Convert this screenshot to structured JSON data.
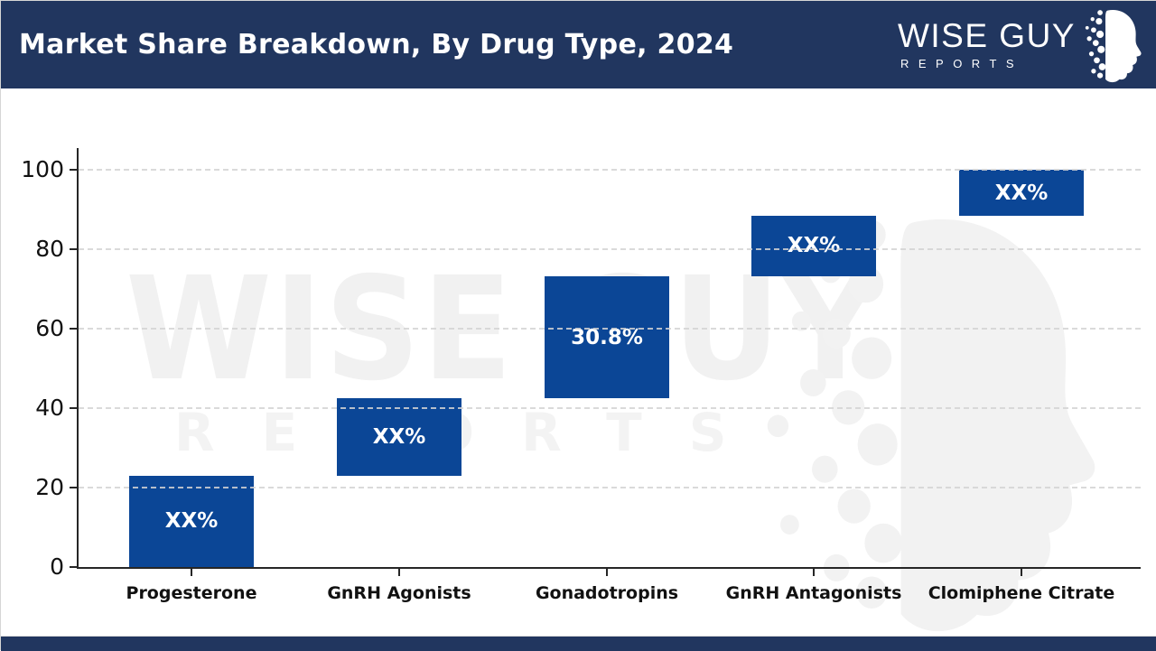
{
  "header": {
    "title": "Market Share Breakdown, By Drug Type, 2024",
    "logo": {
      "line1": "WISE GUY",
      "line2": "REPORTS"
    }
  },
  "watermark": {
    "line1": "WISE GUY",
    "line2": "REPORTS"
  },
  "colors": {
    "header_bg": "#21365f",
    "footer_bg": "#21365f",
    "bar": "#0b4696",
    "bar_label_text": "#ffffff",
    "title_text": "#ffffff",
    "grid": "#d4d4d4",
    "axis": "#262626",
    "watermark": "#f1f1f1"
  },
  "chart_data": {
    "type": "bar",
    "subtype": "waterfall",
    "title": "Market Share Breakdown, By Drug Type, 2024",
    "xlabel": "",
    "ylabel": "",
    "ylim": [
      0,
      105
    ],
    "y_ticks": [
      0,
      20,
      40,
      60,
      80,
      100
    ],
    "grid": "horizontal-dashed",
    "legend": "none",
    "categories": [
      "Progesterone",
      "GnRH Agonists",
      "Gonadotropins",
      "GnRH Antagonists",
      "Clomiphene Citrate"
    ],
    "segments": [
      {
        "category": "Progesterone",
        "label": "XX%",
        "start": 0,
        "end": 23.0
      },
      {
        "category": "GnRH Agonists",
        "label": "XX%",
        "start": 23.0,
        "end": 42.4
      },
      {
        "category": "Gonadotropins",
        "label": "30.8%",
        "start": 42.4,
        "end": 73.2
      },
      {
        "category": "GnRH Antagonists",
        "label": "XX%",
        "start": 73.2,
        "end": 88.4
      },
      {
        "category": "Clomiphene Citrate",
        "label": "XX%",
        "start": 88.4,
        "end": 100.0
      }
    ],
    "values": [
      23.0,
      19.4,
      30.8,
      15.2,
      11.6
    ]
  }
}
